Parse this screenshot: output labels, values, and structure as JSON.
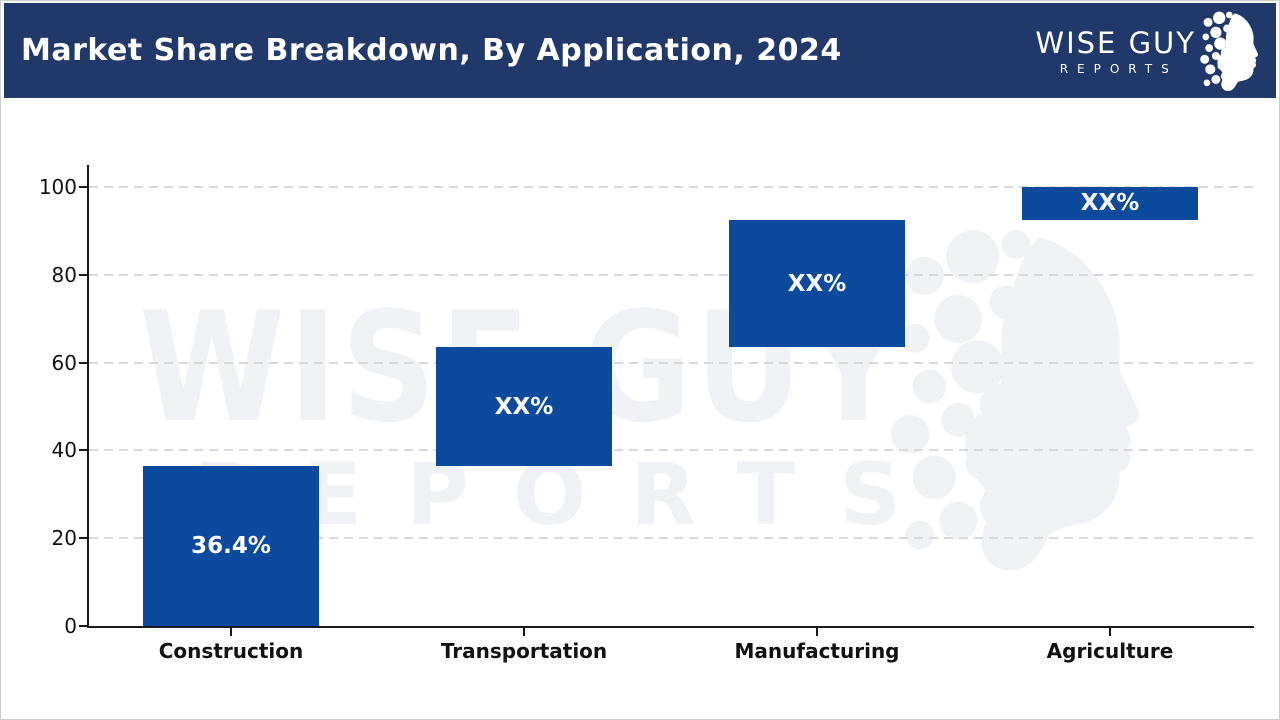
{
  "header": {
    "title": "Market Share Breakdown, By Application, 2024",
    "background_color": "#21386a",
    "logo": {
      "line1": "WISE GUY",
      "line2": "REPORTS"
    }
  },
  "watermark": {
    "line1": "WISE GUY",
    "line2": "REPORTS"
  },
  "chart_data": {
    "type": "bar",
    "subtype": "waterfall",
    "title": "Market Share Breakdown, By Application, 2024",
    "categories": [
      "Construction",
      "Transportation",
      "Manufacturing",
      "Agriculture"
    ],
    "segments": [
      {
        "category": "Construction",
        "start": 0,
        "end": 36.4,
        "label": "36.4%"
      },
      {
        "category": "Transportation",
        "start": 36.4,
        "end": 63.5,
        "label": "XX%"
      },
      {
        "category": "Manufacturing",
        "start": 63.5,
        "end": 92.5,
        "label": "XX%"
      },
      {
        "category": "Agriculture",
        "start": 92.5,
        "end": 100,
        "label": "XX%"
      }
    ],
    "yticks": [
      0,
      20,
      40,
      60,
      80,
      100
    ],
    "ylim": [
      0,
      105
    ],
    "xlabel": "",
    "ylabel": "",
    "legend": null,
    "grid": "horizontal-dashed",
    "bar_color": "#0c4a9e",
    "bar_label_color": "#ffffff",
    "axis_color": "#1a1a1a",
    "gridline_color": "#d9d9d9",
    "watermark_color": "#f1f2f5"
  }
}
